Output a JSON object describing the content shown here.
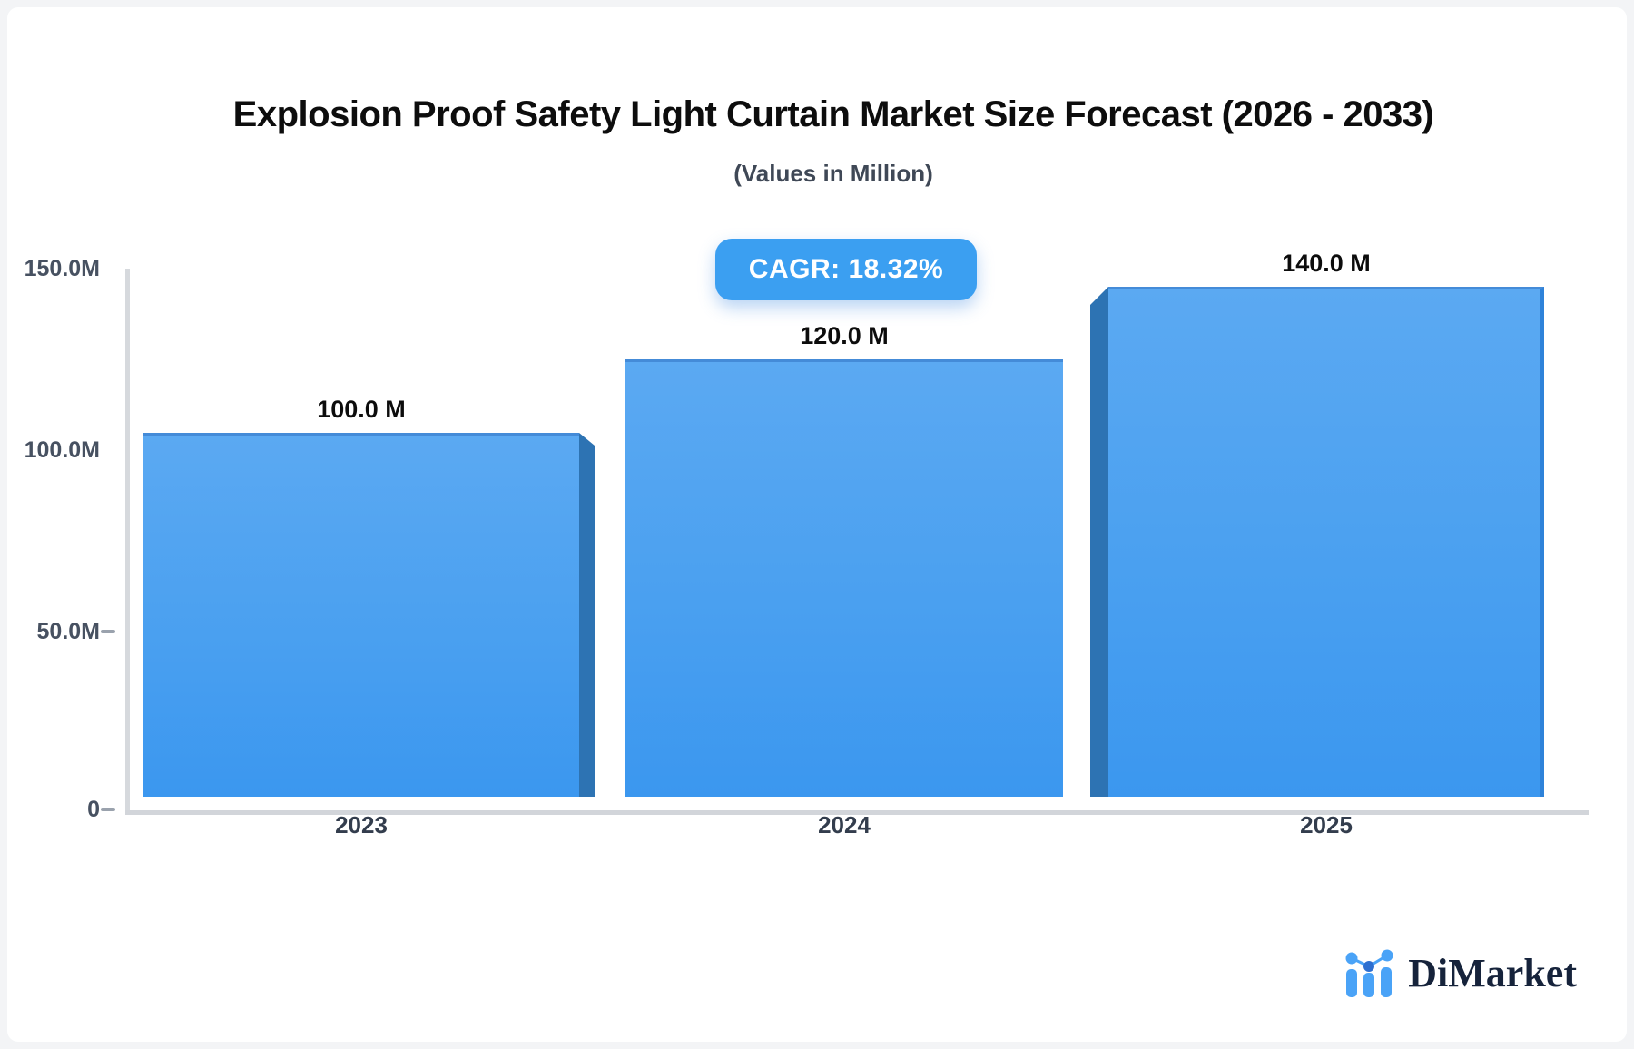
{
  "title": "Explosion Proof Safety Light Curtain Market Size Forecast (2026 - 2033)",
  "subtitle": "(Values in Million)",
  "badge": {
    "label": "CAGR: 18.32%"
  },
  "chart_data": {
    "type": "bar",
    "title": "Explosion Proof Safety Light Curtain Market Size Forecast (2026 - 2033)",
    "subtitle": "(Values in Million)",
    "unit": "Million",
    "categories": [
      "2023",
      "2024",
      "2025"
    ],
    "values": [
      100.0,
      120.0,
      140.0
    ],
    "value_labels": [
      "100.0 M",
      "120.0 M",
      "140.0 M"
    ],
    "cagr_percent": 18.32,
    "ylim": [
      0,
      150
    ],
    "ytick_labels": [
      "150.0M",
      "100.0M",
      "50.0M",
      "0"
    ],
    "grid": false,
    "legend_position": "none",
    "bar_color_top": "#5ba9f2",
    "bar_color_bottom": "#3b97ef",
    "bar_side_color": "#2d73b3",
    "badge_color": "#3b9ff1",
    "axis_color": "#d4d7db"
  },
  "logo": {
    "text": "DiMarket",
    "icon": "mini-bar-chart-icon",
    "icon_color": "#4aa3f7",
    "text_color": "#16233b"
  }
}
